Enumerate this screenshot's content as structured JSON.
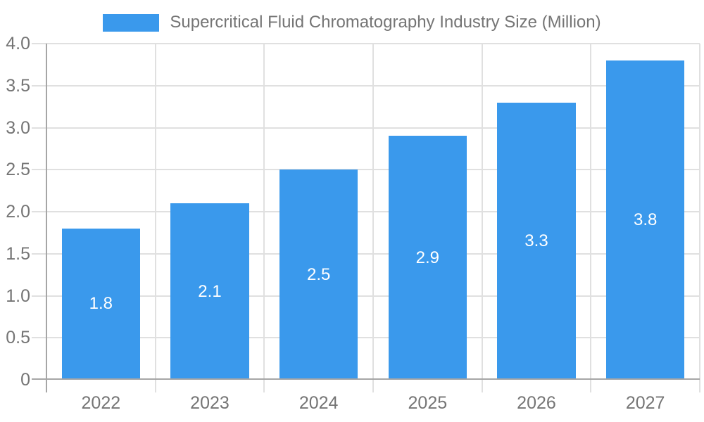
{
  "colors": {
    "background": "#FFFFFF",
    "bar": "#3A99EC",
    "grid": "#E0E0E0",
    "axis": "#A6A6A6",
    "text": "#757575",
    "bar_label": "#FFFFFF"
  },
  "legend": {
    "label": "Supercritical Fluid Chromatography Industry Size (Million)"
  },
  "chart_data": {
    "type": "bar",
    "title": "Supercritical Fluid Chromatography Industry Size (Million)",
    "categories": [
      "2022",
      "2023",
      "2024",
      "2025",
      "2026",
      "2027"
    ],
    "values": [
      1.8,
      2.1,
      2.5,
      2.9,
      3.3,
      3.8
    ],
    "data_labels": [
      "1.8",
      "2.1",
      "2.5",
      "2.9",
      "3.3",
      "3.8"
    ],
    "xlabel": "",
    "ylabel": "",
    "ylim": [
      0,
      4.0
    ],
    "ytick_step": 0.5,
    "ytick_labels": [
      "0",
      "0.5",
      "1.0",
      "1.5",
      "2.0",
      "2.5",
      "3.0",
      "3.5",
      "4.0"
    ],
    "grid": true,
    "legend_position": "top",
    "data_label_position": "inside-center",
    "bar_width_ratio": 0.72
  }
}
